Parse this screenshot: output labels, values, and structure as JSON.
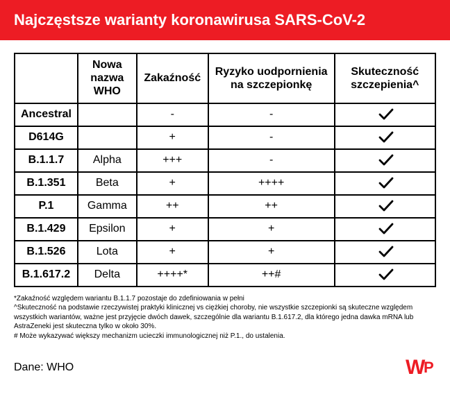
{
  "header": {
    "title": "Najczęstsze warianty koronawirusa SARS-CoV-2"
  },
  "table": {
    "columns": [
      "",
      "Nowa nazwa WHO",
      "Zakaźność",
      "Ryzyko uodpornienia na szczepionkę",
      "Skuteczność szczepienia^"
    ],
    "rows": [
      {
        "variant": "Ancestral",
        "who": "",
        "infectivity": "-",
        "resistance": "-",
        "effective": true
      },
      {
        "variant": "D614G",
        "who": "",
        "infectivity": "+",
        "resistance": "-",
        "effective": true
      },
      {
        "variant": "B.1.1.7",
        "who": "Alpha",
        "infectivity": "+++",
        "resistance": "-",
        "effective": true
      },
      {
        "variant": "B.1.351",
        "who": "Beta",
        "infectivity": "+",
        "resistance": "++++",
        "effective": true
      },
      {
        "variant": "P.1",
        "who": "Gamma",
        "infectivity": "++",
        "resistance": "++",
        "effective": true
      },
      {
        "variant": "B.1.429",
        "who": "Epsilon",
        "infectivity": "+",
        "resistance": "+",
        "effective": true
      },
      {
        "variant": "B.1.526",
        "who": "Lota",
        "infectivity": "+",
        "resistance": "+",
        "effective": true
      },
      {
        "variant": "B.1.617.2",
        "who": "Delta",
        "infectivity": "++++*",
        "resistance": "++#",
        "effective": true
      }
    ]
  },
  "footnotes": [
    "*Zakaźność względem wariantu B.1.1.7 pozostaje do zdefiniowania w pełni",
    "^Skuteczność na podstawie rzeczywistej praktyki klinicznej vs ciężkiej choroby, nie wszystkie szczepionki są skuteczne względem wszystkich wariantów, ważne jest przyjęcie dwóch dawek, szczególnie dla wariantu B.1.617.2, dla którego jedna dawka mRNA lub AstraZeneki jest skuteczna tylko w około 30%.",
    "# Może wykazywać większy mechanizm ucieczki immunologicznej niż P.1., do ustalenia."
  ],
  "footer": {
    "source": "Dane: WHO",
    "logo": "WP"
  },
  "style": {
    "header_bg": "#ed1c24",
    "header_color": "#ffffff",
    "border_color": "#000000",
    "check_color": "#000000",
    "logo_color": "#ed1c24",
    "font_family": "Arial, Helvetica, sans-serif"
  }
}
